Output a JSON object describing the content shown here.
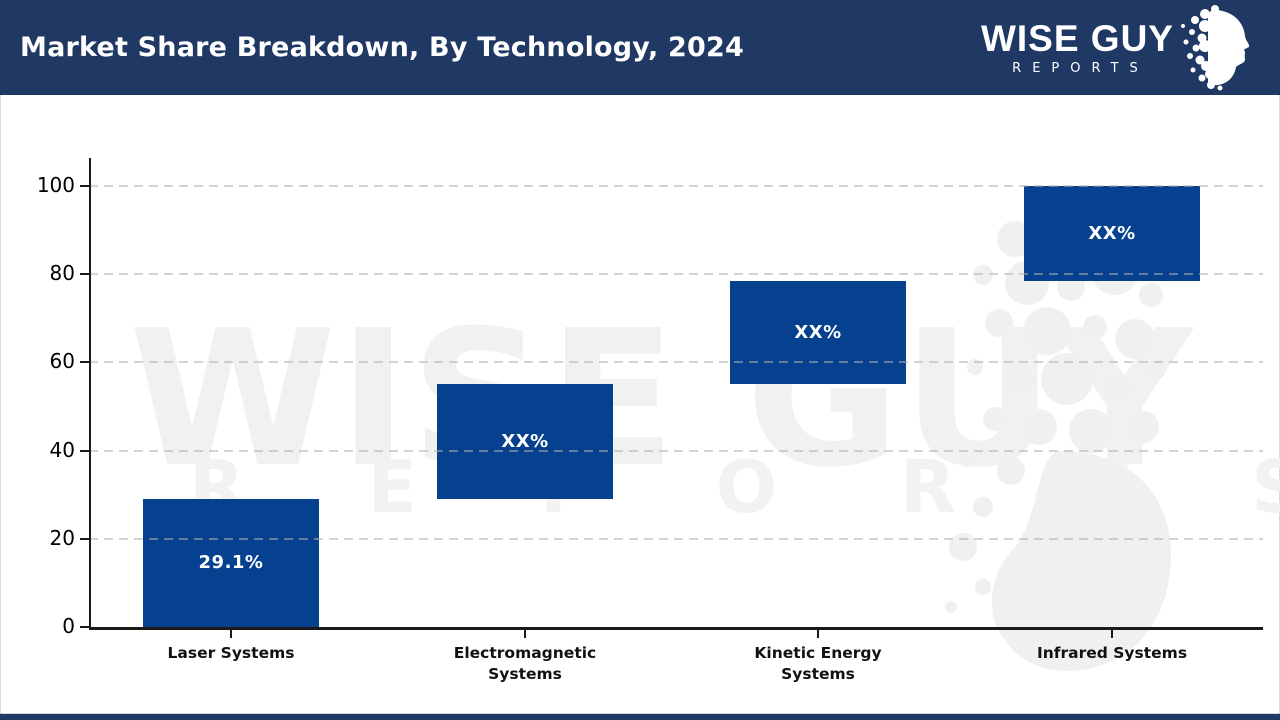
{
  "header": {
    "title": "Market Share Breakdown, By Technology, 2024",
    "logo": {
      "line1": "WISE GUY",
      "line2": "REPORTS"
    }
  },
  "watermark": {
    "line1": "WISE GUY",
    "line2": "REPORTS"
  },
  "colors": {
    "header_navy": "#1F3864",
    "bar_blue": "#05418F",
    "grid_gray": "#c9c9c9",
    "watermark_gray": "#f1f1f1"
  },
  "chart_data": {
    "type": "bar",
    "subtype": "waterfall",
    "title": "Market Share Breakdown, By Technology, 2024",
    "xlabel": "",
    "ylabel": "",
    "ylim": [
      0,
      105
    ],
    "yticks": [
      0,
      20,
      40,
      60,
      80,
      100
    ],
    "grid": "horizontal-dashed",
    "legend": "none",
    "categories": [
      "Laser Systems",
      "Electromagnetic\nSystems",
      "Kinetic Energy\nSystems",
      "Infrared Systems"
    ],
    "segments": [
      {
        "category": "Laser Systems",
        "start": 0,
        "end": 29.1,
        "label": "29.1%"
      },
      {
        "category": "Electromagnetic Systems",
        "start": 29.1,
        "end": 55.0,
        "label": "XX%"
      },
      {
        "category": "Kinetic Energy Systems",
        "start": 55.0,
        "end": 78.4,
        "label": "XX%"
      },
      {
        "category": "Infrared Systems",
        "start": 78.4,
        "end": 100.0,
        "label": "XX%"
      }
    ]
  }
}
